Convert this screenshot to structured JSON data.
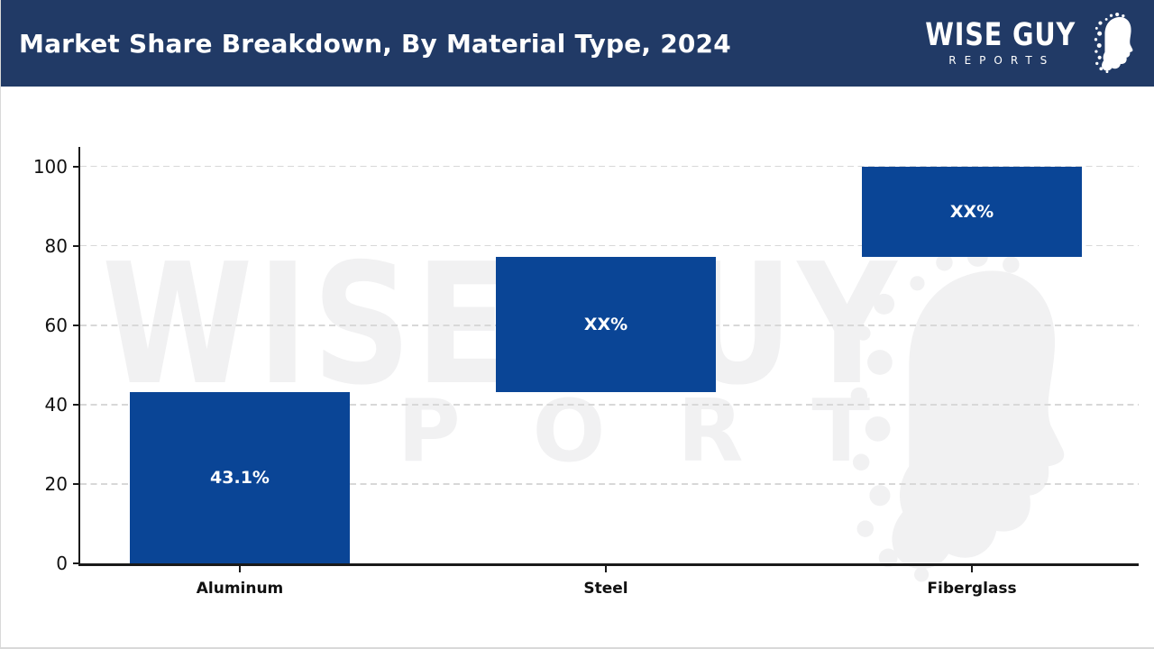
{
  "header": {
    "title": "Market Share Breakdown, By Material Type, 2024",
    "background": "#213a66",
    "logo": {
      "line1": "WISE GUY",
      "line2": "REPORTS"
    }
  },
  "watermark": {
    "line1": "WISE GUY",
    "line2": "REPORTS"
  },
  "chart_data": {
    "type": "bar",
    "subtype": "waterfall",
    "title": "Market Share Breakdown, By Material Type, 2024",
    "categories": [
      "Aluminum",
      "Steel",
      "Fiberglass"
    ],
    "segments": [
      {
        "category": "Aluminum",
        "label": "43.1%",
        "start": 0,
        "end": 43.1
      },
      {
        "category": "Steel",
        "label": "XX%",
        "start": 43.1,
        "end": 77.2
      },
      {
        "category": "Fiberglass",
        "label": "XX%",
        "start": 77.2,
        "end": 100
      }
    ],
    "yticks": [
      0,
      20,
      40,
      60,
      80,
      100
    ],
    "ylim": [
      0,
      104.9
    ],
    "xlabel": "",
    "ylabel": "",
    "grid": "dashed-horizontal",
    "legend": "none",
    "bar_color": "#0a4596",
    "bar_label_color": "#ffffff",
    "axis_color": "#1a1a1a",
    "grid_color": "#d8d8d8"
  }
}
